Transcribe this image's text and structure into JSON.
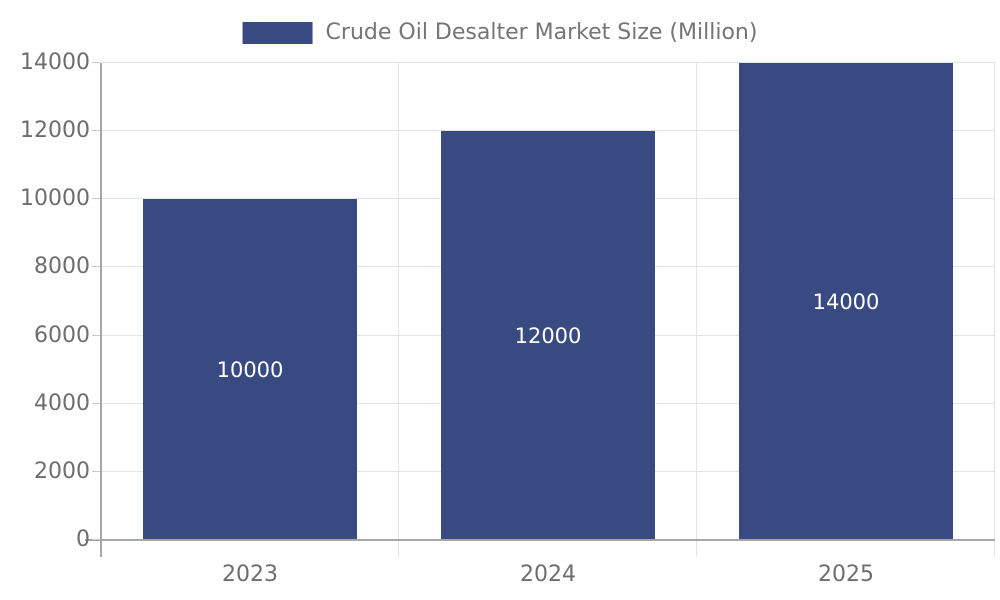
{
  "chart_data": {
    "type": "bar",
    "title": "Crude Oil Desalter Market Size (Million)",
    "categories": [
      "2023",
      "2024",
      "2025"
    ],
    "values": [
      10000,
      12000,
      14000
    ],
    "bar_labels": [
      "10000",
      "12000",
      "14000"
    ],
    "y_ticks": [
      0,
      2000,
      4000,
      6000,
      8000,
      10000,
      12000,
      14000
    ],
    "ylim": [
      0,
      14000
    ],
    "xlabel": "",
    "ylabel": "",
    "grid": true,
    "legend_position": "top-center",
    "colors": {
      "bar": "#384a81",
      "bar_label": "#ffffff",
      "grid_line": "#e3e3e3",
      "axis_line": "#a6a6a6",
      "tick_mark": "#c9c9c9",
      "tick_label": "#6e6e6e",
      "legend_text": "#757575",
      "background": "#ffffff"
    }
  }
}
